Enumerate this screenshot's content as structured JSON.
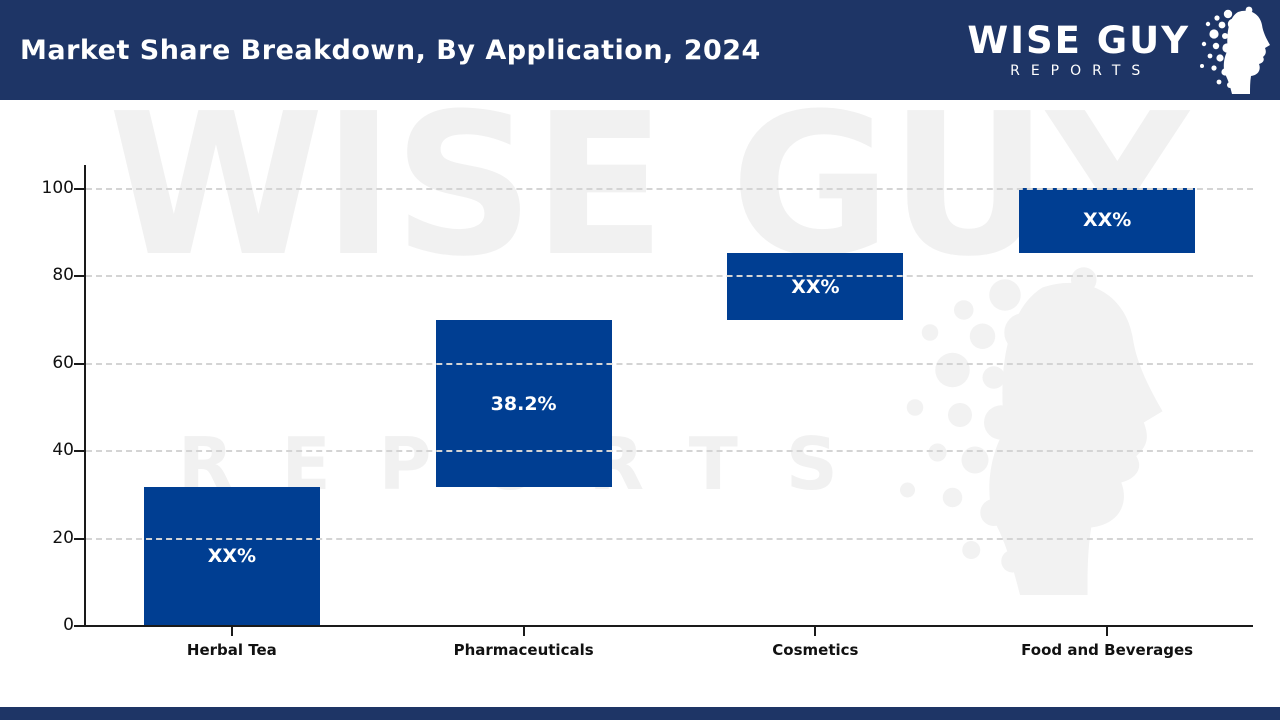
{
  "header": {
    "title": "Market Share Breakdown, By Application, 2024",
    "logo": {
      "line1": "WISE GUY",
      "line2": "REPORTS"
    }
  },
  "watermark": {
    "line1": "WISE GUY",
    "line2": "REPORTS"
  },
  "chart_data": {
    "type": "bar",
    "subtype": "floating-waterfall-segments",
    "title": "Market Share Breakdown, By Application, 2024",
    "categories": [
      "Herbal Tea",
      "Pharmaceuticals",
      "Cosmetics",
      "Food and Beverages"
    ],
    "bars": [
      {
        "category": "Herbal Tea",
        "start": 0,
        "end": 31.5,
        "label": "XX%"
      },
      {
        "category": "Pharmaceuticals",
        "start": 31.5,
        "end": 69.7,
        "label": "38.2%"
      },
      {
        "category": "Cosmetics",
        "start": 69.7,
        "end": 85,
        "label": "XX%"
      },
      {
        "category": "Food and Beverages",
        "start": 85,
        "end": 100,
        "label": "XX%"
      }
    ],
    "xlabel": "",
    "ylabel": "",
    "ylim": [
      0,
      105
    ],
    "yticks": [
      0,
      20,
      40,
      60,
      80,
      100
    ],
    "grid": "horizontal-dashed",
    "legend": "none",
    "bar_color": "#003e92",
    "header_color": "#1e3566",
    "gridline_color": "#d4d4d4",
    "axis_color": "#1a1a1a"
  }
}
